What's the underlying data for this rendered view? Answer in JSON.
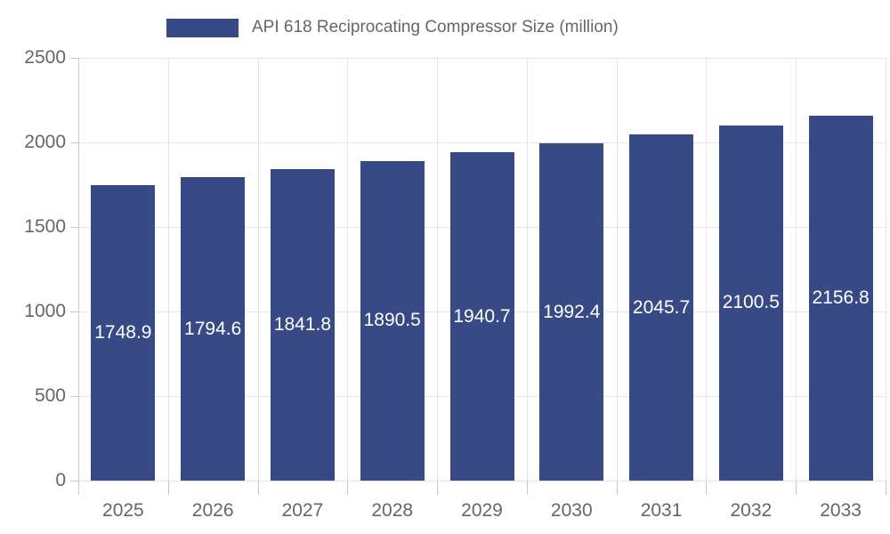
{
  "chart_data": {
    "type": "bar",
    "title": "API 618 Reciprocating Compressor Size (million)",
    "legend_entries": [
      "API 618 Reciprocating Compressor Size (million)"
    ],
    "legend_position": "top",
    "categories": [
      "2025",
      "2026",
      "2027",
      "2028",
      "2029",
      "2030",
      "2031",
      "2032",
      "2033"
    ],
    "values": [
      1748.9,
      1794.6,
      1841.8,
      1890.5,
      1940.7,
      1992.4,
      2045.7,
      2100.5,
      2156.8
    ],
    "bar_value_labels": [
      "1748.9",
      "1794.6",
      "1841.8",
      "1890.5",
      "1940.7",
      "1992.4",
      "2045.7",
      "2100.5",
      "2156.8"
    ],
    "xlabel": "",
    "ylabel": "",
    "ylim": [
      0,
      2500
    ],
    "y_ticks": [
      0,
      500,
      1000,
      1500,
      2000,
      2500
    ],
    "grid": true,
    "colors": {
      "bar": "#374a86",
      "grid": "#e6e6e6",
      "axis": "#c9c9c9",
      "axis_text": "#666666",
      "legend_text": "#666666",
      "value_label_text": "#ffffff",
      "background": "#ffffff"
    }
  }
}
